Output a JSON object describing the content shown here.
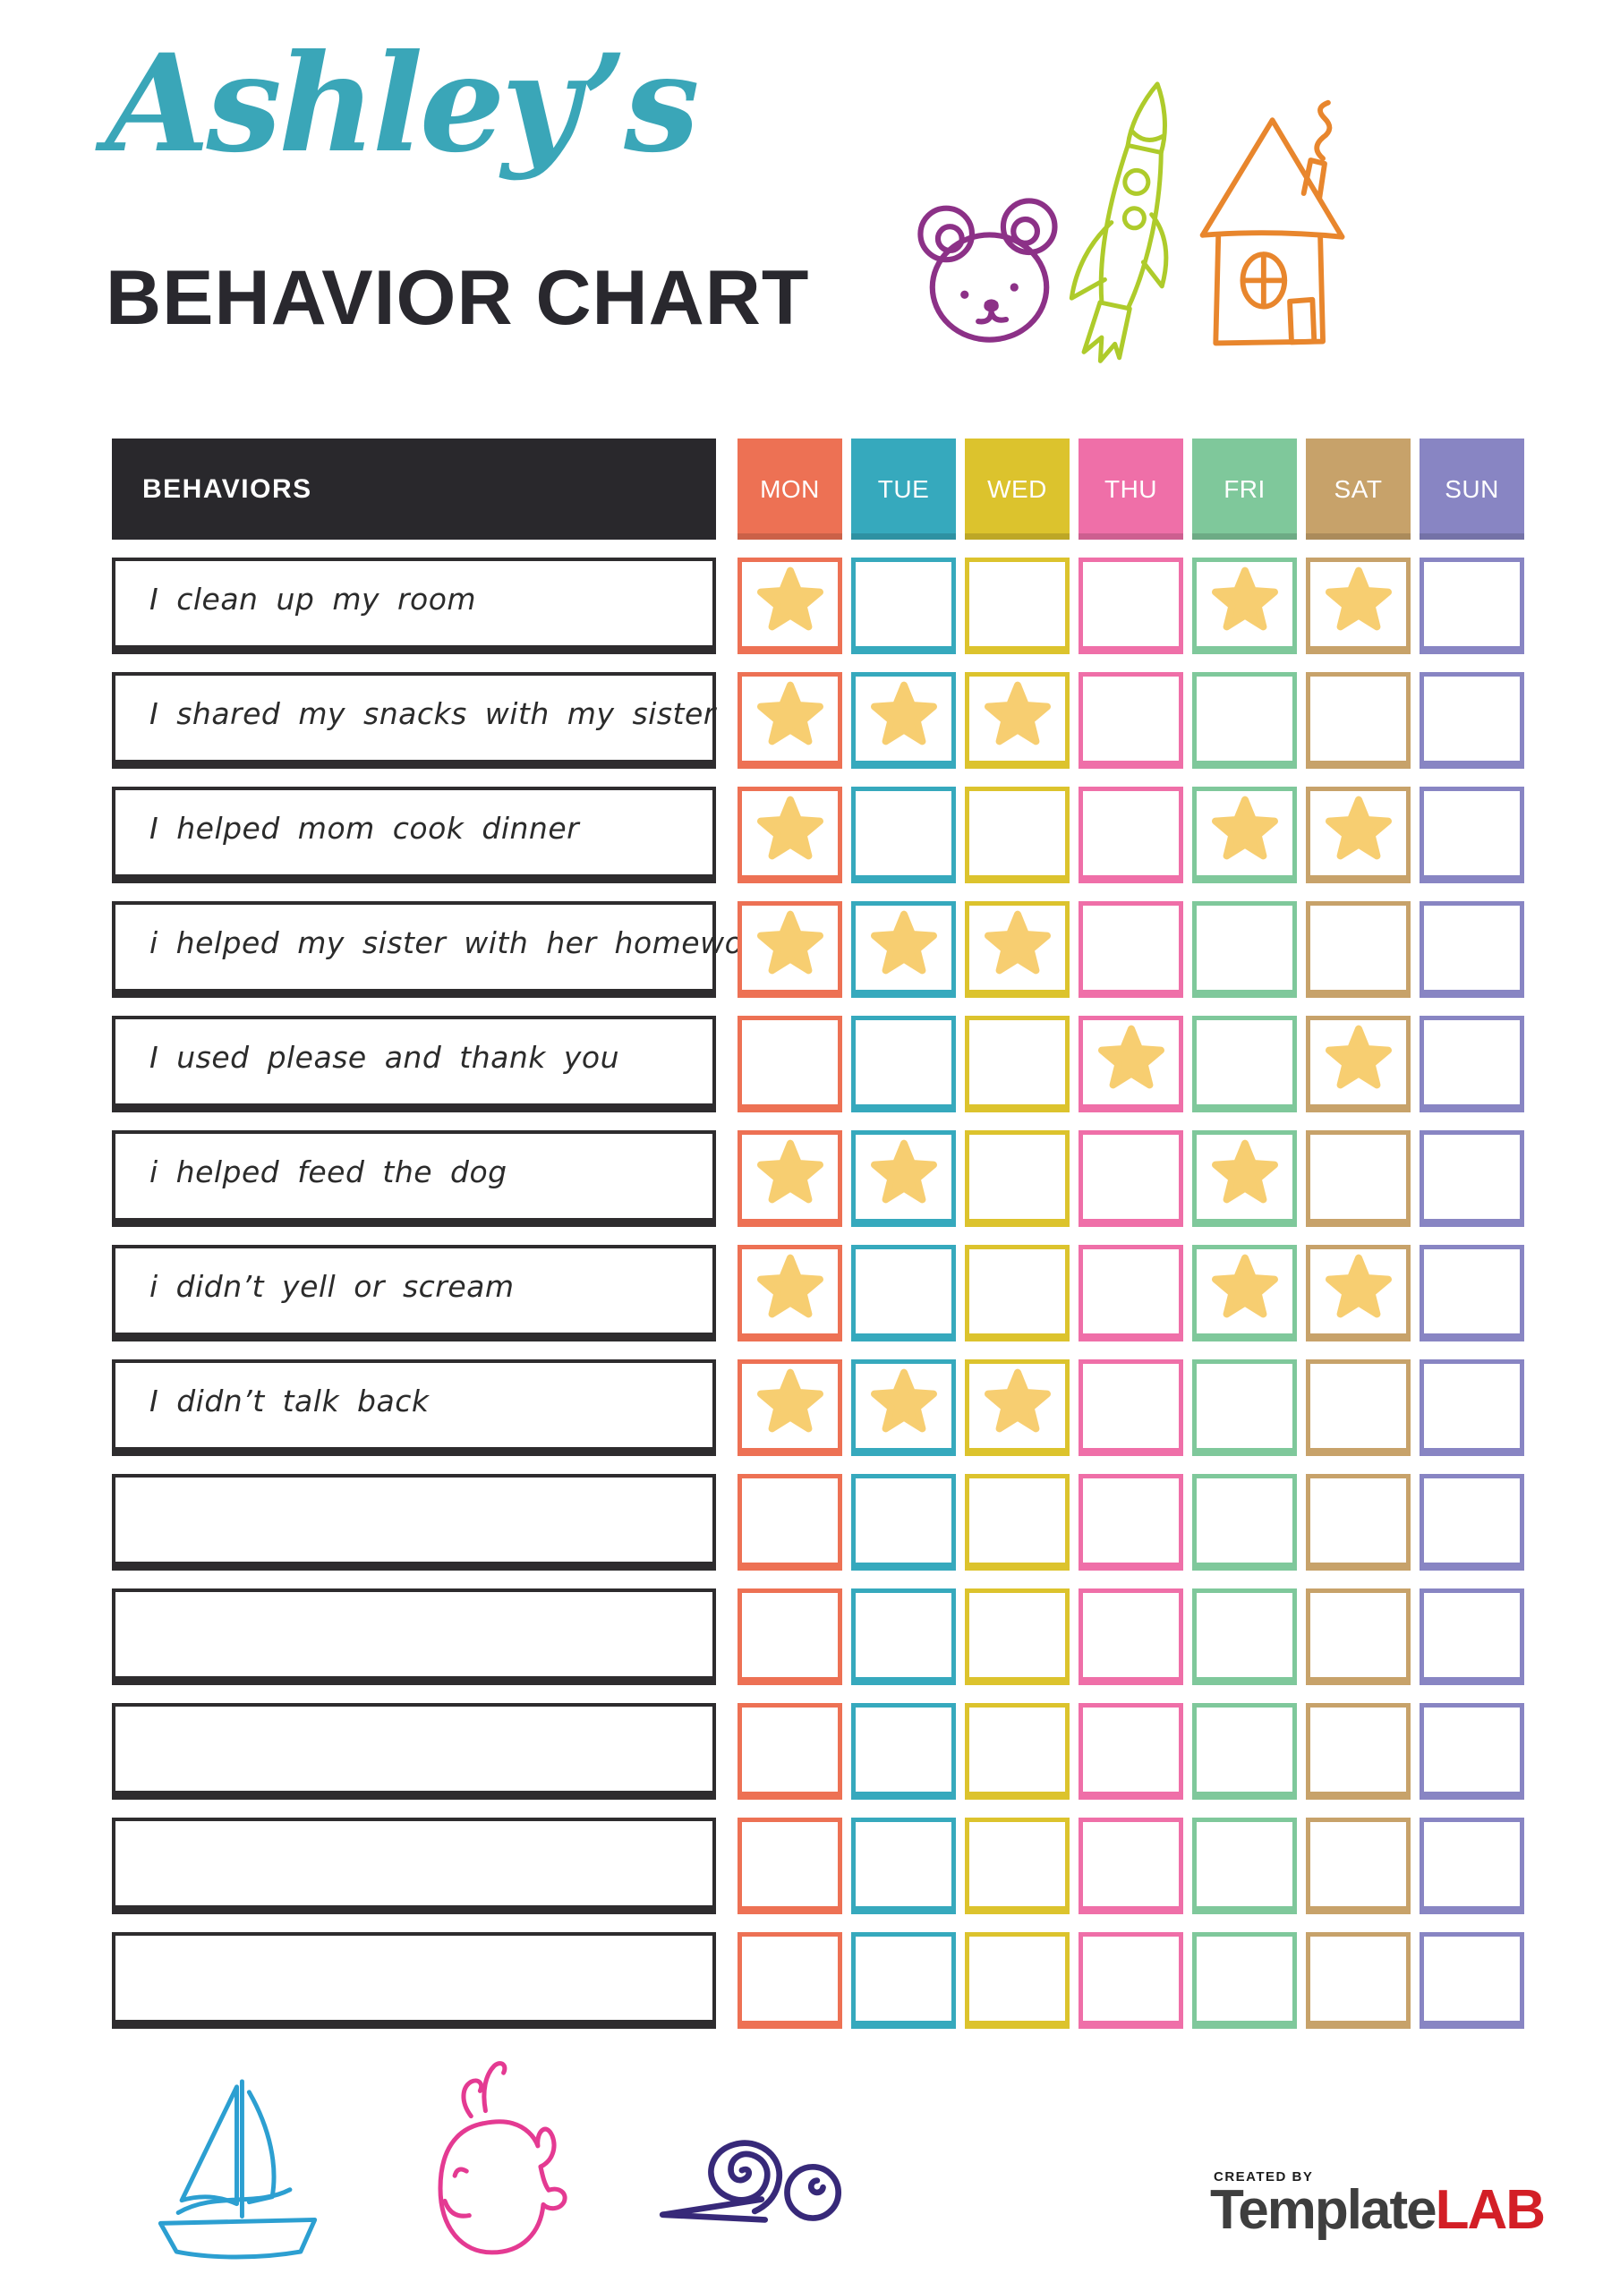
{
  "title": {
    "script": "Ashley’s",
    "script_color": "#3AA6B8",
    "main": "BEHAVIOR CHART",
    "main_color": "#29282E"
  },
  "decorations": {
    "top_icons": [
      "teddy-bear",
      "rocket",
      "house"
    ],
    "bottom_icons": [
      "sailboat",
      "whale",
      "snail"
    ],
    "colors": {
      "bear": "#8C3187",
      "rocket": "#AECB2B",
      "house": "#E8862D",
      "boat": "#2C9FD1",
      "whale": "#E43A92",
      "snail": "#372979"
    }
  },
  "table": {
    "behaviors_header": "BEHAVIORS",
    "header_bg": "#29282C",
    "star_color": "#F7CE71",
    "days": [
      {
        "label": "MON",
        "color": "#ED7154"
      },
      {
        "label": "TUE",
        "color": "#36A9BD"
      },
      {
        "label": "WED",
        "color": "#DCC32D"
      },
      {
        "label": "THU",
        "color": "#EF6FA8"
      },
      {
        "label": "FRI",
        "color": "#7FC89B"
      },
      {
        "label": "SAT",
        "color": "#C7A26A"
      },
      {
        "label": "SUN",
        "color": "#8885C3"
      }
    ],
    "rows": [
      {
        "behavior": "I clean up my room",
        "stars": [
          "MON",
          "FRI",
          "SAT"
        ]
      },
      {
        "behavior": "I shared my snacks with my sister",
        "stars": [
          "MON",
          "TUE",
          "WED"
        ]
      },
      {
        "behavior": "I helped mom cook dinner",
        "stars": [
          "MON",
          "FRI",
          "SAT"
        ]
      },
      {
        "behavior": "i helped my sister with her homework",
        "stars": [
          "MON",
          "TUE",
          "WED"
        ]
      },
      {
        "behavior": "I used please and thank you",
        "stars": [
          "THU",
          "SAT"
        ]
      },
      {
        "behavior": "i helped feed the dog",
        "stars": [
          "MON",
          "TUE",
          "FRI"
        ]
      },
      {
        "behavior": "i didn’t yell or scream",
        "stars": [
          "MON",
          "FRI",
          "SAT"
        ]
      },
      {
        "behavior": "I didn’t talk back",
        "stars": [
          "MON",
          "TUE",
          "WED"
        ]
      },
      {
        "behavior": "",
        "stars": []
      },
      {
        "behavior": "",
        "stars": []
      },
      {
        "behavior": "",
        "stars": []
      },
      {
        "behavior": "",
        "stars": []
      },
      {
        "behavior": "",
        "stars": []
      }
    ]
  },
  "footer": {
    "created_by": "CREATED BY",
    "brand_name": "Template",
    "brand_suffix": "LAB",
    "brand_name_color": "#3E3E3E",
    "brand_suffix_color": "#D31F26"
  }
}
